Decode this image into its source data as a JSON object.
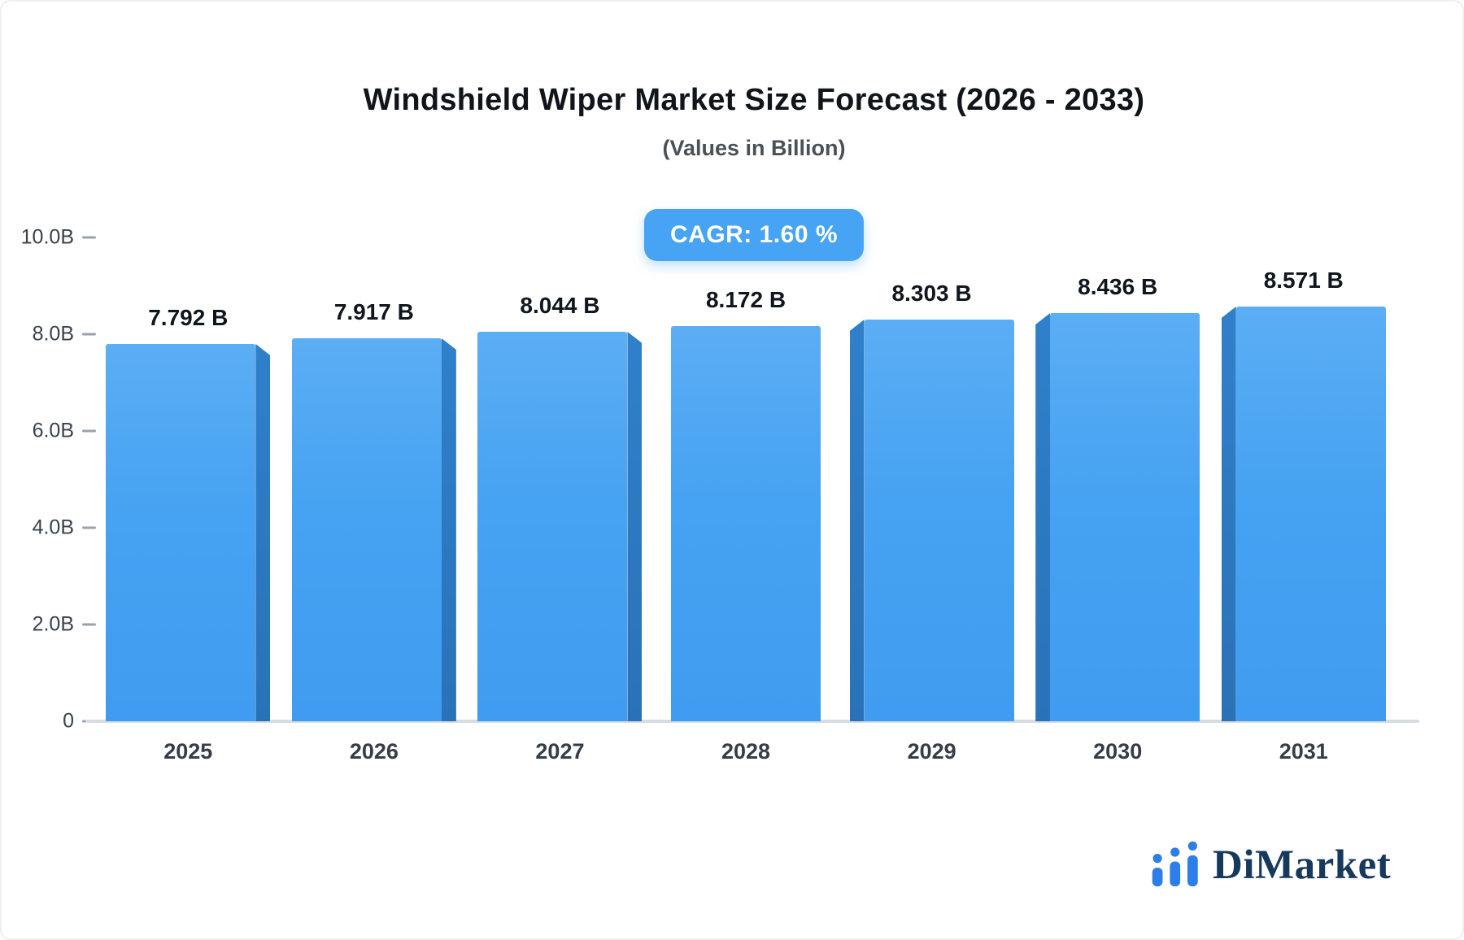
{
  "chart_data": {
    "type": "bar",
    "title": "Windshield Wiper Market Size Forecast (2026 - 2033)",
    "subtitle": "(Values in Billion)",
    "cagr_label": "CAGR: 1.60 %",
    "categories": [
      "2025",
      "2026",
      "2027",
      "2028",
      "2029",
      "2030",
      "2031"
    ],
    "values": [
      7.792,
      7.917,
      8.044,
      8.172,
      8.303,
      8.436,
      8.571
    ],
    "value_labels": [
      "7.792 B",
      "7.917 B",
      "8.044 B",
      "8.172 B",
      "8.303 B",
      "8.436 B",
      "8.571 B"
    ],
    "unit": "Billion",
    "xlabel": "",
    "ylabel": "",
    "ylim": [
      0,
      10
    ],
    "y_ticks": [
      "10.0B",
      "8.0B",
      "6.0B",
      "4.0B",
      "2.0B",
      "0"
    ],
    "grid": false,
    "legend": false
  },
  "colors": {
    "bar_fill_top": "#5baef4",
    "bar_fill_bottom": "#3f9cf0",
    "bar_side": "#2d7ac4",
    "badge_bg": "#47a3f3",
    "badge_text": "#ffffff",
    "axis_line": "#d7dce1",
    "logo_icon": "#2d7ee9",
    "logo_text": "#17395e"
  },
  "branding": {
    "logo_text": "DiMarket",
    "logo_icon": "bar-chart-icon"
  }
}
